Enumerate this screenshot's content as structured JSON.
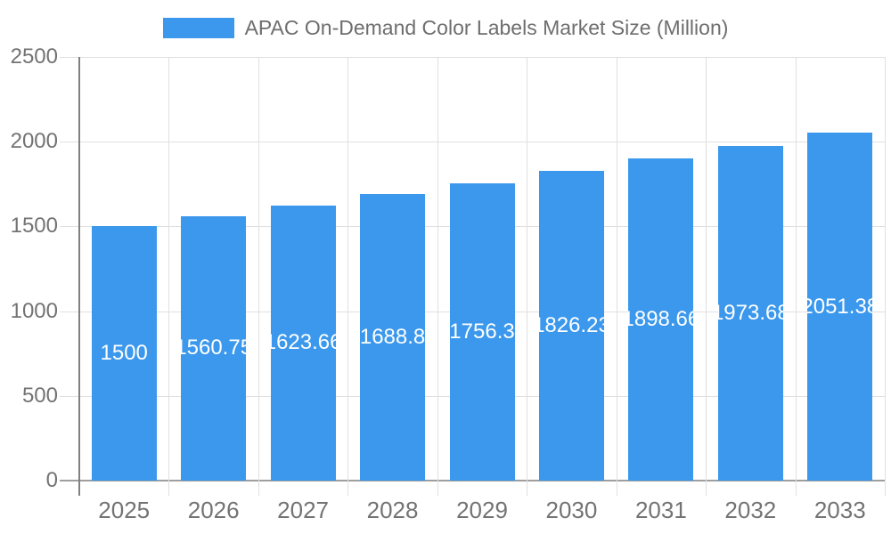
{
  "legend": {
    "label": "APAC On-Demand Color Labels Market Size (Million)"
  },
  "colors": {
    "bar": "#3b98ec",
    "grid": "#e0e0e0",
    "baseline": "#9e9e9e",
    "axis": "#808080",
    "tick_label": "#737373",
    "value_label": "#ffffff",
    "legend_text": "#6e6e6e",
    "background": "#ffffff"
  },
  "chart_data": {
    "type": "bar",
    "title": "APAC On-Demand Color Labels Market Size (Million)",
    "categories": [
      "2025",
      "2026",
      "2027",
      "2028",
      "2029",
      "2030",
      "2031",
      "2032",
      "2033"
    ],
    "values": [
      1500,
      1560.75,
      1623.66,
      1688.8,
      1756.3,
      1826.23,
      1898.66,
      1973.68,
      2051.38
    ],
    "value_labels": [
      "1500",
      "1560.75",
      "1623.66",
      "1688.8",
      "1756.3",
      "1826.23",
      "1898.66",
      "1973.68",
      "2051.38"
    ],
    "xlabel": "",
    "ylabel": "",
    "ylim": [
      0,
      2500
    ],
    "yticks": [
      0,
      500,
      1000,
      1500,
      2000,
      2500
    ],
    "grid": true,
    "legend_position": "top"
  }
}
